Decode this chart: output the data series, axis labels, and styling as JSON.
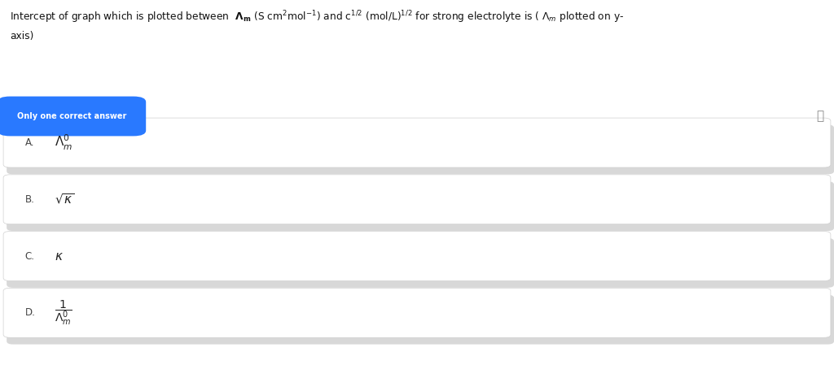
{
  "background_color": "#ffffff",
  "title_text_plain": "Intercept of graph which is plotted between  ",
  "title_math1": "$\\mathbf{\\Lambda_m}$",
  "title_rest": " (S cm$^2$mol$^{-1}$) and c$^{1/2}$ (mol/L)$^{1/2}$ for strong electrolyte is ( $\\Lambda_m$ plotted on y-\naxis)",
  "badge_text": "Only one correct answer",
  "badge_bg": "#2979ff",
  "badge_text_color": "#ffffff",
  "options": [
    {
      "label": "A.",
      "math": "$\\Lambda_m^0$"
    },
    {
      "label": "B.",
      "math": "$\\sqrt{\\kappa}$"
    },
    {
      "label": "C.",
      "math": "$\\kappa$"
    },
    {
      "label": "D.",
      "math": "$\\dfrac{1}{\\Lambda_m^0}$"
    }
  ],
  "option_box_color": "#ffffff",
  "option_box_border": "#d0d0d0",
  "option_label_color": "#444444",
  "option_text_color": "#222222",
  "title_color": "#111111",
  "info_icon_color": "#888888",
  "separator_color": "#e0e8f0",
  "shadow_color": "#d8d8d8"
}
